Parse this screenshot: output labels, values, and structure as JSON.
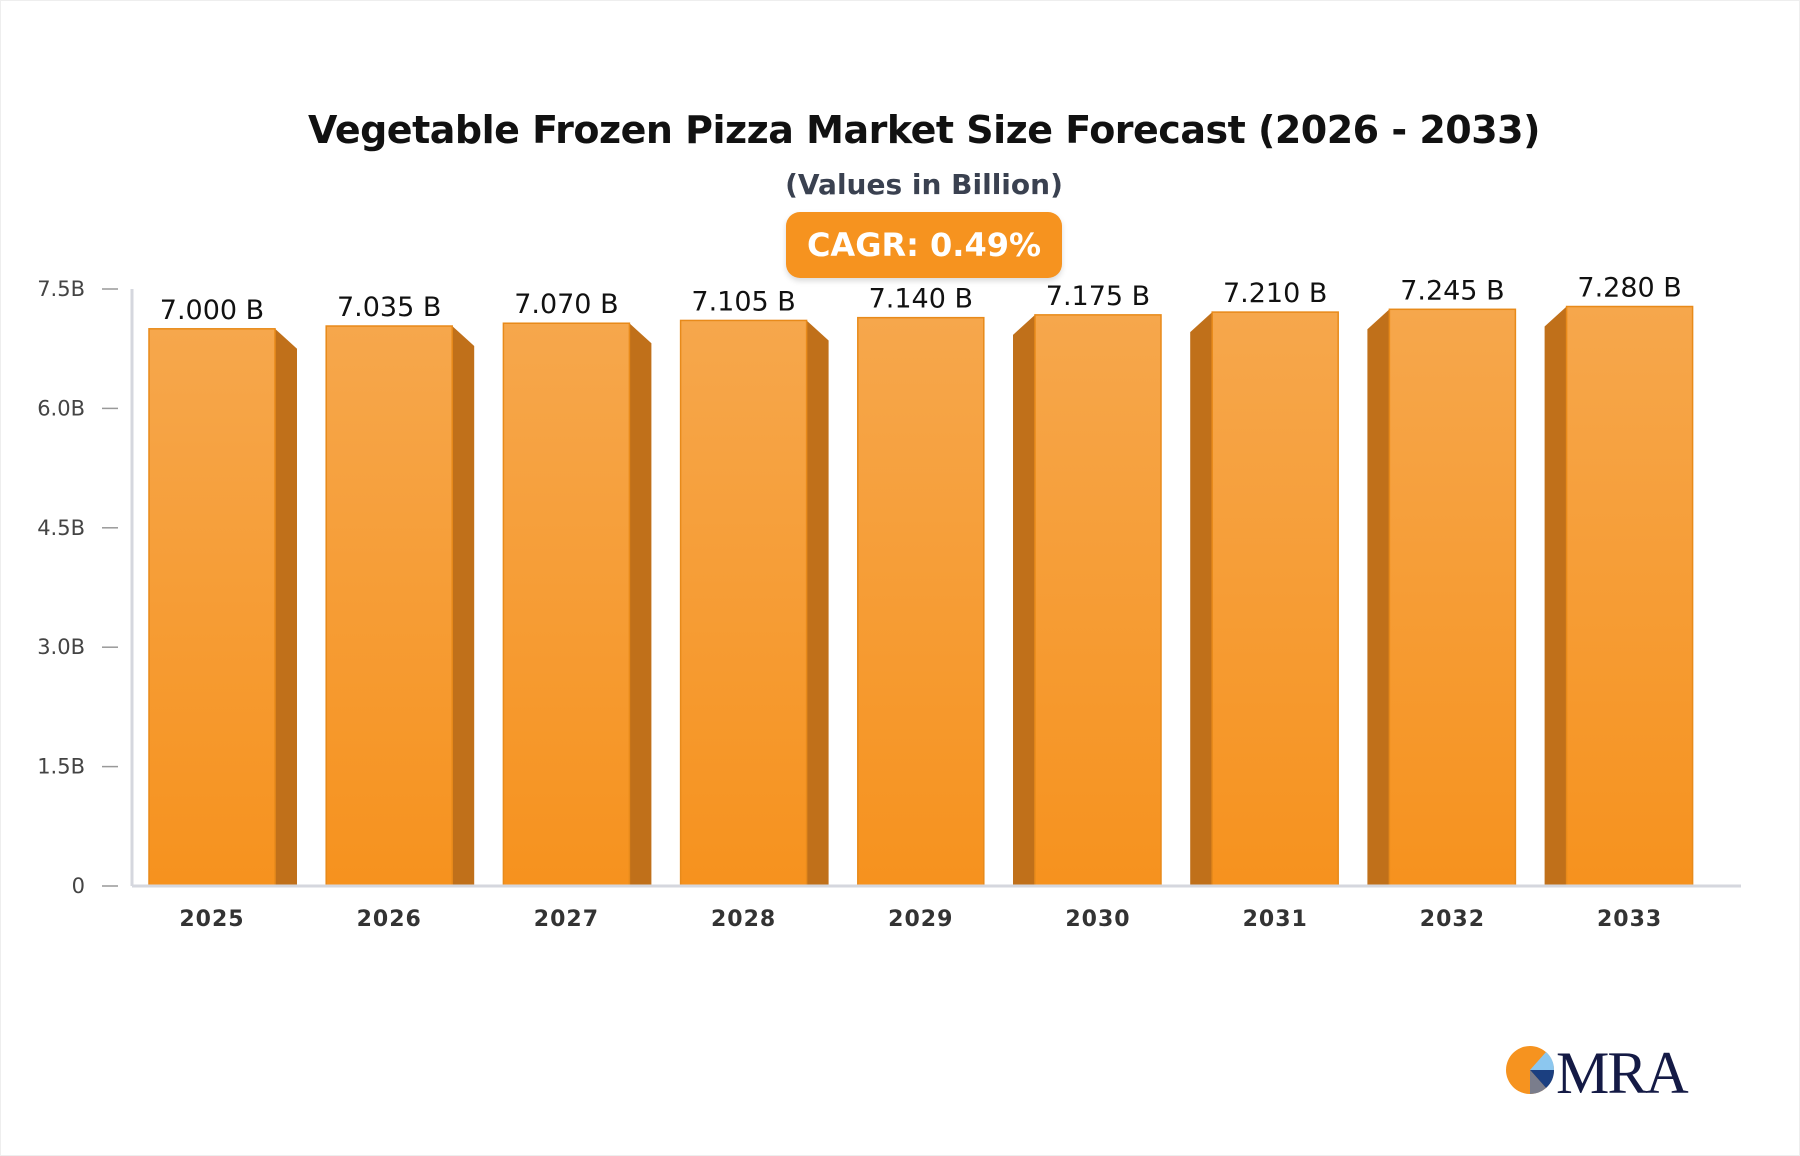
{
  "chart_data": {
    "type": "bar",
    "title": "Vegetable Frozen Pizza Market Size Forecast (2026 - 2033)",
    "subtitle": "(Values in Billion)",
    "categories": [
      "2025",
      "2026",
      "2027",
      "2028",
      "2029",
      "2030",
      "2031",
      "2032",
      "2033"
    ],
    "values": [
      7.0,
      7.035,
      7.07,
      7.105,
      7.14,
      7.175,
      7.21,
      7.245,
      7.28
    ],
    "data_labels": [
      "7.000 B",
      "7.035 B",
      "7.070 B",
      "7.105 B",
      "7.140 B",
      "7.175 B",
      "7.210 B",
      "7.245 B",
      "7.280 B"
    ],
    "y_ticks": [
      0,
      1.5,
      3.0,
      4.5,
      6.0,
      7.5
    ],
    "y_tick_labels": [
      "0",
      "1.5B",
      "3.0B",
      "4.5B",
      "6.0B",
      "7.5B"
    ],
    "ylim": [
      0,
      7.5
    ],
    "grid": false,
    "bar_color": "#f6931f",
    "annotation": "CAGR: 0.49%"
  },
  "logo_text": "MRA"
}
